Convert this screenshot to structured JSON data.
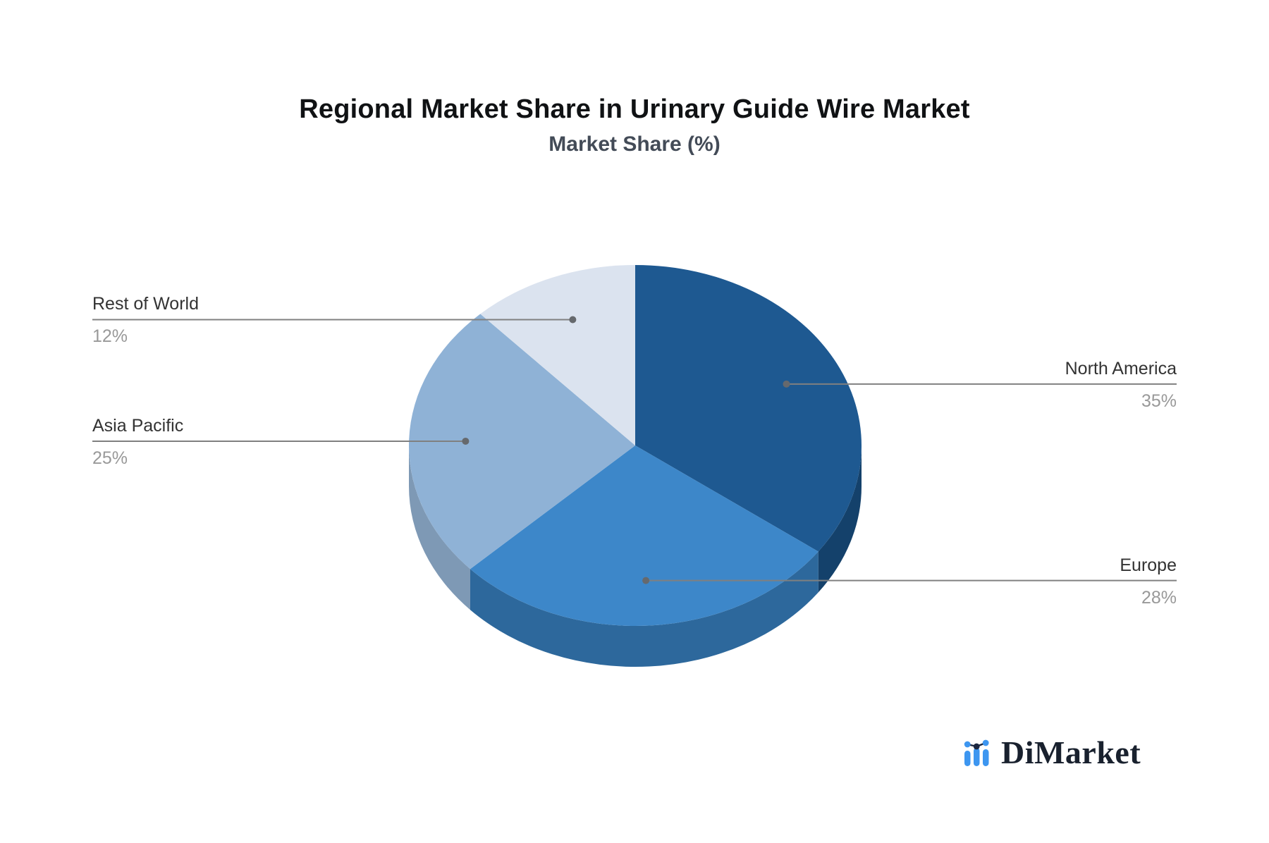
{
  "title": "Regional Market Share in Urinary Guide Wire Market",
  "subtitle": "Market Share (%)",
  "logo": {
    "text": "DiMarket",
    "icon": "bar-chart-logo-icon",
    "bar_color": "#3d96f0",
    "accent_color": "#1b2740",
    "text_color": "#19212e"
  },
  "chart_data": {
    "type": "pie",
    "is_3d": true,
    "title": "Regional Market Share in Urinary Guide Wire Market",
    "subtitle": "Market Share (%)",
    "unit": "%",
    "direction": "clockwise",
    "start_angle_deg": 0,
    "legend_position": "none",
    "grid": false,
    "connector_color": "#808080",
    "connector_dot_color": "#66696d",
    "label_name_color": "#333333",
    "label_value_color": "#999999",
    "slices": [
      {
        "label": "North America",
        "value": 35,
        "display": "35%",
        "color": "#1e5991",
        "side_color": "#14416b",
        "label_side": "right"
      },
      {
        "label": "Europe",
        "value": 28,
        "display": "28%",
        "color": "#3d87c9",
        "side_color": "#2d689c",
        "label_side": "right"
      },
      {
        "label": "Asia Pacific",
        "value": 25,
        "display": "25%",
        "color": "#8fb2d6",
        "side_color": "#7e99b5",
        "label_side": "left"
      },
      {
        "label": "Rest of World",
        "value": 12,
        "display": "12%",
        "color": "#dbe3ef",
        "side_color": "#c3cfe0",
        "label_side": "left"
      }
    ]
  }
}
